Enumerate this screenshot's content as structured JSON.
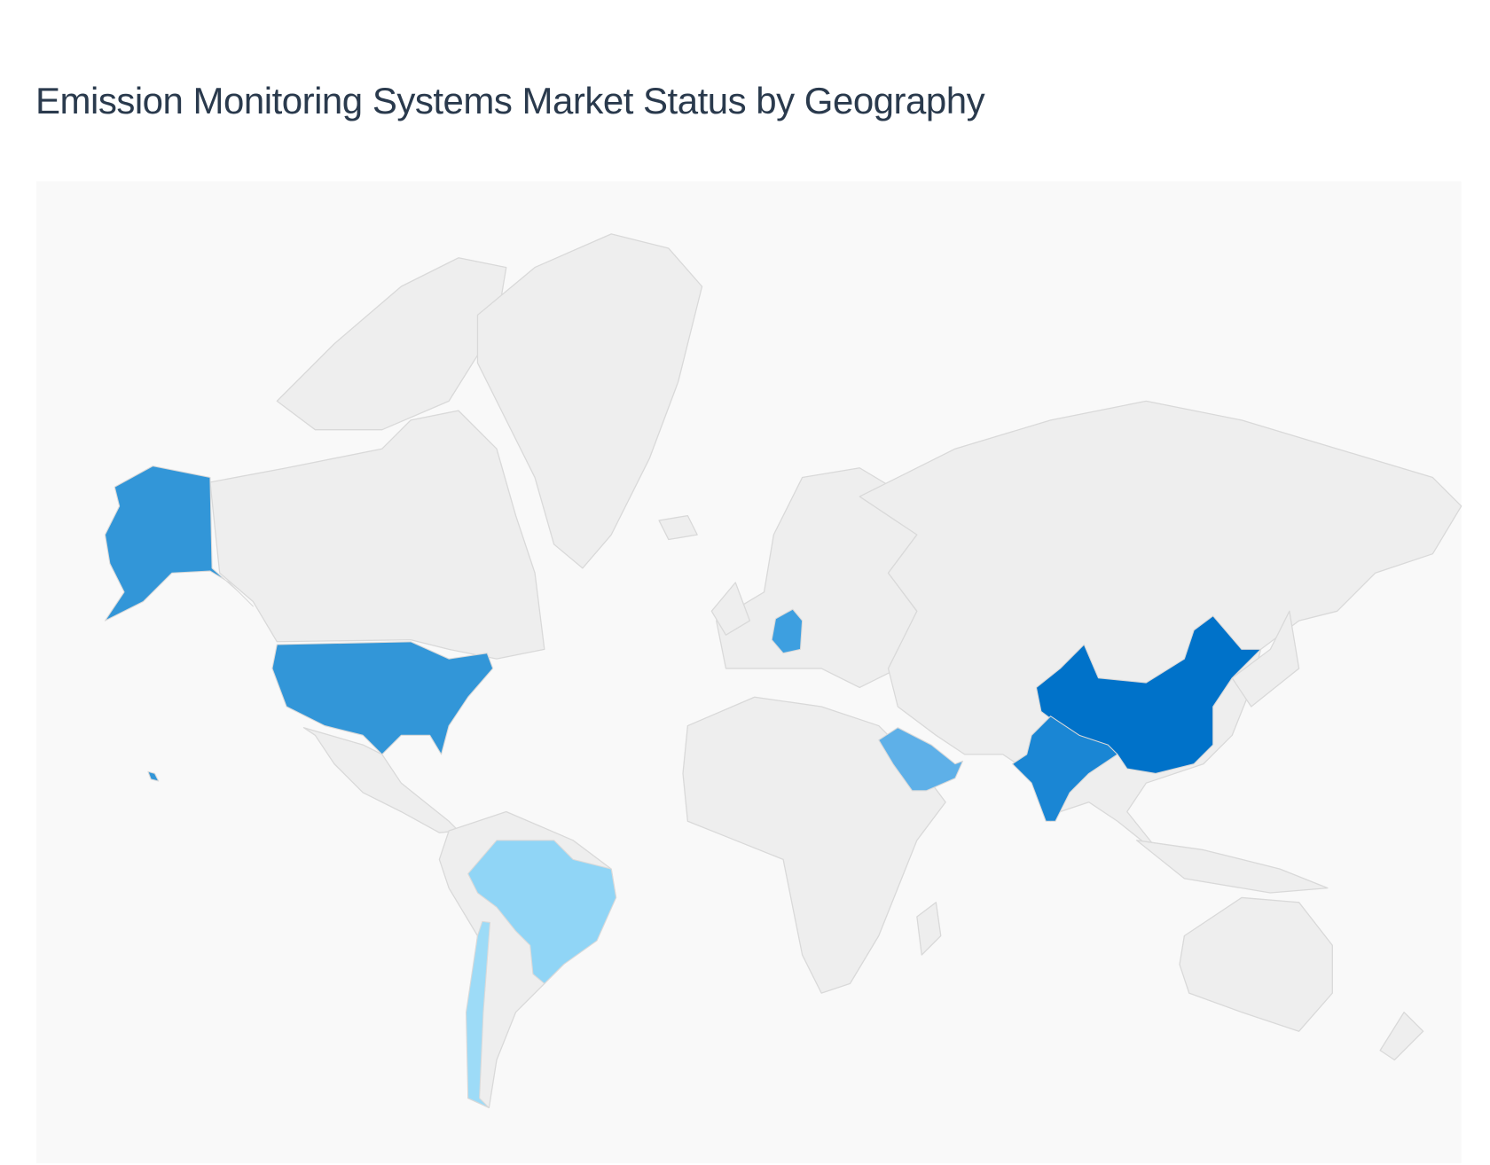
{
  "title": "Emission Monitoring Systems Market Status by Geography",
  "map": {
    "background_color": "#f9f9f9",
    "land_color": "#eeeeee",
    "border_color": "#d9d9d9",
    "highlighted_countries": [
      {
        "name": "China",
        "color": "#0072c9"
      },
      {
        "name": "India",
        "color": "#1a86d4"
      },
      {
        "name": "United States",
        "color": "#3296d8"
      },
      {
        "name": "Germany",
        "color": "#3d9fe0"
      },
      {
        "name": "Saudi Arabia",
        "color": "#5eb0e8"
      },
      {
        "name": "Brazil",
        "color": "#90d5f6"
      },
      {
        "name": "Chile",
        "color": "#9ddbf7"
      }
    ]
  }
}
